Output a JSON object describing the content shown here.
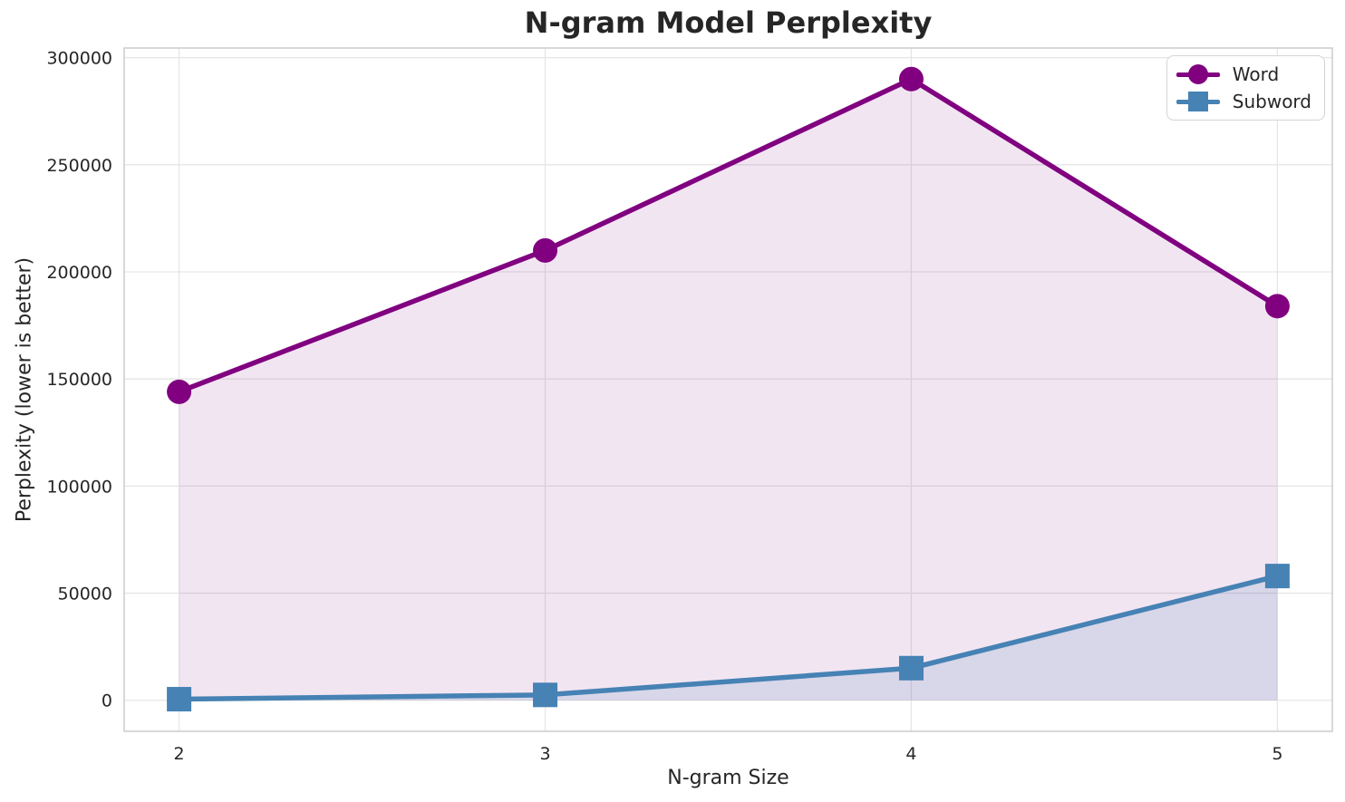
{
  "chart_data": {
    "type": "line",
    "title": "N-gram Model Perplexity",
    "xlabel": "N-gram Size",
    "ylabel": "Perplexity (lower is better)",
    "x": [
      2,
      3,
      4,
      5
    ],
    "series": [
      {
        "name": "Word",
        "values": [
          144000,
          210000,
          290000,
          184000
        ],
        "color": "#800080",
        "marker": "circle",
        "area_fill": true,
        "fill_opacity": 0.1
      },
      {
        "name": "Subword",
        "values": [
          500,
          2500,
          15000,
          58000
        ],
        "color": "#4682b4",
        "marker": "square",
        "area_fill": true,
        "fill_opacity": 0.15
      }
    ],
    "xticks": [
      2,
      3,
      4,
      5
    ],
    "xtick_labels": [
      "2",
      "3",
      "4",
      "5"
    ],
    "yticks": [
      0,
      50000,
      100000,
      150000,
      200000,
      250000,
      300000
    ],
    "ytick_labels": [
      "0",
      "50000",
      "100000",
      "150000",
      "200000",
      "250000",
      "300000"
    ],
    "xlim": [
      1.85,
      5.15
    ],
    "ylim": [
      -14500,
      304500
    ],
    "grid": true,
    "legend_position": "upper right",
    "fill_baseline": 0
  },
  "style": {
    "background": "#ffffff",
    "grid_color": "#e6e6e6",
    "spine_color": "#cccccc",
    "text_color": "#262626",
    "word_color": "#800080",
    "subword_color": "#4682b4"
  }
}
